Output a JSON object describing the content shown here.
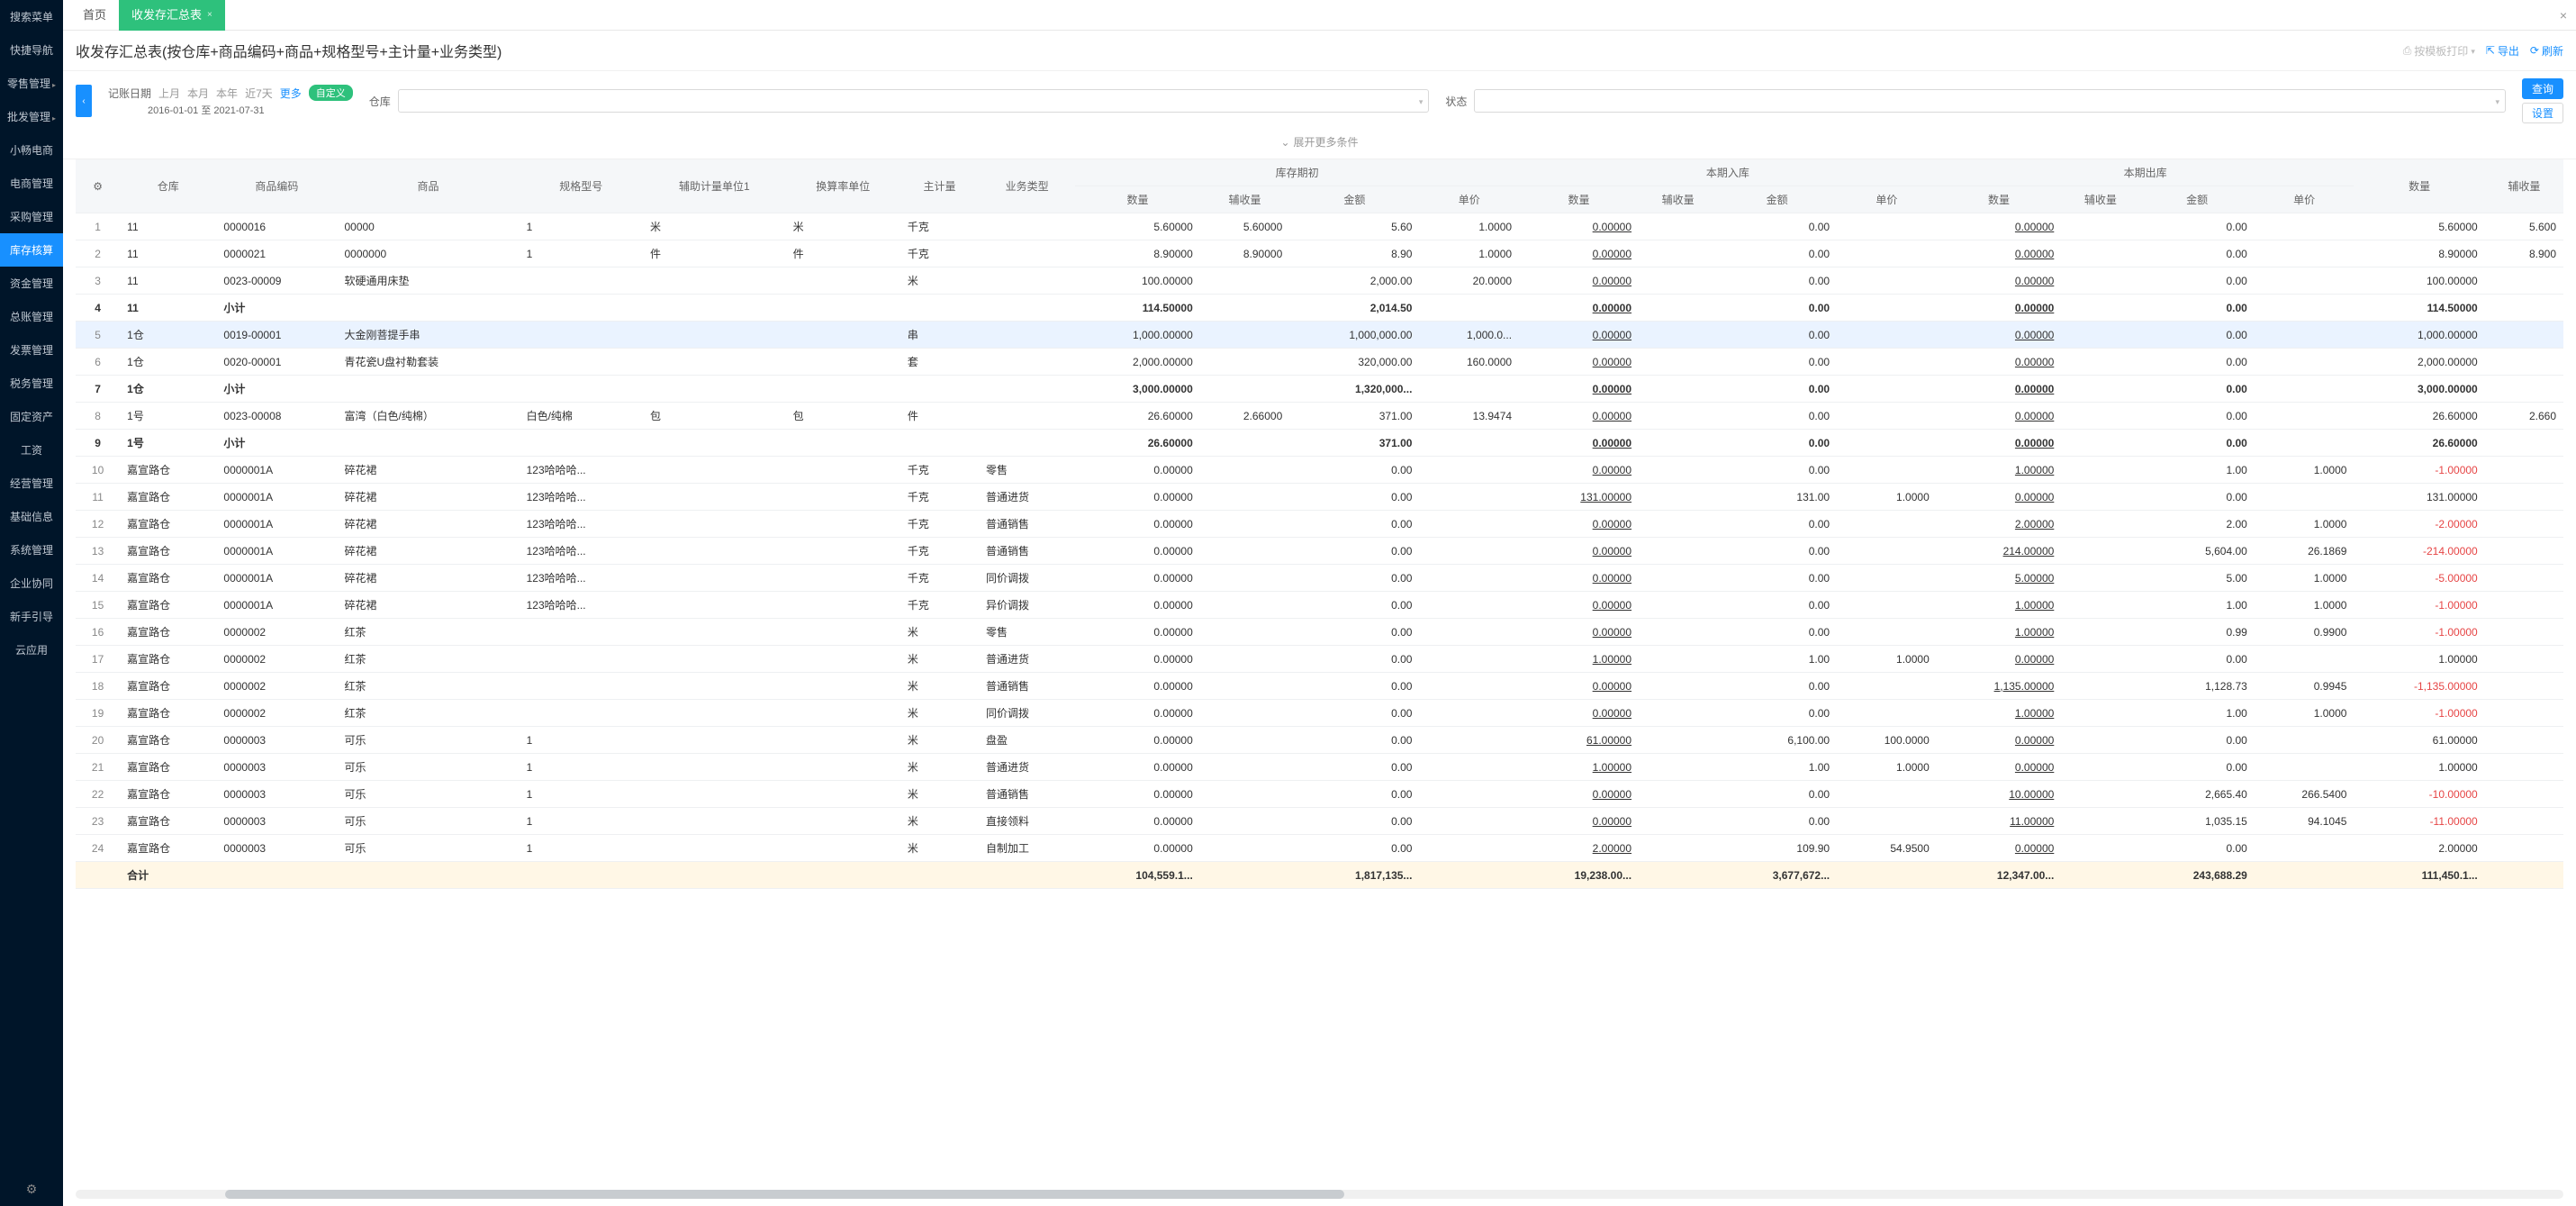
{
  "sidebar": {
    "items": [
      {
        "label": "搜索菜单",
        "arrow": false
      },
      {
        "label": "快捷导航",
        "arrow": false
      },
      {
        "label": "零售管理",
        "arrow": true
      },
      {
        "label": "批发管理",
        "arrow": true
      },
      {
        "label": "小畅电商",
        "arrow": false
      },
      {
        "label": "电商管理",
        "arrow": false
      },
      {
        "label": "采购管理",
        "arrow": false
      },
      {
        "label": "库存核算",
        "arrow": false,
        "active": true
      },
      {
        "label": "资金管理",
        "arrow": false
      },
      {
        "label": "总账管理",
        "arrow": false
      },
      {
        "label": "发票管理",
        "arrow": false
      },
      {
        "label": "税务管理",
        "arrow": false
      },
      {
        "label": "固定资产",
        "arrow": false
      },
      {
        "label": "工资",
        "arrow": false
      },
      {
        "label": "经营管理",
        "arrow": false
      },
      {
        "label": "基础信息",
        "arrow": false
      },
      {
        "label": "系统管理",
        "arrow": false
      },
      {
        "label": "企业协同",
        "arrow": false
      },
      {
        "label": "新手引导",
        "arrow": false
      },
      {
        "label": "云应用",
        "arrow": false
      }
    ]
  },
  "tabs": {
    "home": "首页",
    "active": "收发存汇总表",
    "close": "×"
  },
  "header": {
    "title": "收发存汇总表(按仓库+商品编码+商品+规格型号+主计量+业务类型)",
    "print": "按模板打印",
    "export": "导出",
    "refresh": "刷新"
  },
  "filter": {
    "dateLabel": "记账日期",
    "presets": [
      "上月",
      "本月",
      "本年",
      "近7天",
      "更多"
    ],
    "custom": "自定义",
    "range": "2016-01-01 至 2021-07-31",
    "warehouse": "仓库",
    "status": "状态",
    "query": "查询",
    "settings": "设置",
    "expand": "展开更多条件"
  },
  "columns": {
    "gear": "⚙",
    "warehouse": "仓库",
    "code": "商品编码",
    "product": "商品",
    "spec": "规格型号",
    "aux": "辅助计量单位1",
    "stockUnit": "换算率单位",
    "mainUnit": "主计量",
    "biz": "业务类型",
    "g1": "库存期初",
    "g2": "本期入库",
    "g3": "本期出库",
    "qty": "数量",
    "auxQty": "辅收量",
    "amt": "金额",
    "price": "单价"
  },
  "rows": [
    {
      "i": "1",
      "wh": "11",
      "code": "0000016",
      "prod": "00000",
      "spec": "1",
      "aux": "米",
      "su": "米",
      "mu": "千克",
      "biz": "",
      "q1": "5.60000",
      "aq1": "5.60000",
      "a1": "5.60",
      "p1": "1.0000",
      "q2": "0.00000",
      "aq2": "",
      "a2": "0.00",
      "p2": "",
      "q3": "0.00000",
      "aq3": "",
      "a3": "0.00",
      "p3": "",
      "q4": "5.60000",
      "aq4": "5.600"
    },
    {
      "i": "2",
      "wh": "11",
      "code": "0000021",
      "prod": "0000000",
      "spec": "1",
      "aux": "件",
      "su": "件",
      "mu": "千克",
      "biz": "",
      "q1": "8.90000",
      "aq1": "8.90000",
      "a1": "8.90",
      "p1": "1.0000",
      "q2": "0.00000",
      "aq2": "",
      "a2": "0.00",
      "p2": "",
      "q3": "0.00000",
      "aq3": "",
      "a3": "0.00",
      "p3": "",
      "q4": "8.90000",
      "aq4": "8.900"
    },
    {
      "i": "3",
      "wh": "11",
      "code": "0023-00009",
      "prod": "软硬通用床垫",
      "spec": "",
      "aux": "",
      "su": "",
      "mu": "米",
      "biz": "",
      "q1": "100.00000",
      "aq1": "",
      "a1": "2,000.00",
      "p1": "20.0000",
      "q2": "0.00000",
      "aq2": "",
      "a2": "0.00",
      "p2": "",
      "q3": "0.00000",
      "aq3": "",
      "a3": "0.00",
      "p3": "",
      "q4": "100.00000",
      "aq4": ""
    },
    {
      "i": "4",
      "wh": "11",
      "code": "小计",
      "sub": true,
      "q1": "114.50000",
      "a1": "2,014.50",
      "q2": "0.00000",
      "a2": "0.00",
      "q3": "0.00000",
      "a3": "0.00",
      "q4": "114.50000"
    },
    {
      "i": "5",
      "wh": "1仓",
      "code": "0019-00001",
      "prod": "大金刚菩提手串",
      "spec": "",
      "aux": "",
      "su": "",
      "mu": "串",
      "biz": "",
      "hover": true,
      "q1": "1,000.00000",
      "aq1": "",
      "a1": "1,000,000.00",
      "p1": "1,000.0...",
      "q2": "0.00000",
      "aq2": "",
      "a2": "0.00",
      "p2": "",
      "q3": "0.00000",
      "aq3": "",
      "a3": "0.00",
      "p3": "",
      "q4": "1,000.00000",
      "aq4": ""
    },
    {
      "i": "6",
      "wh": "1仓",
      "code": "0020-00001",
      "prod": "青花瓷U盘衬勒套装",
      "spec": "",
      "aux": "",
      "su": "",
      "mu": "套",
      "biz": "",
      "q1": "2,000.00000",
      "aq1": "",
      "a1": "320,000.00",
      "p1": "160.0000",
      "q2": "0.00000",
      "aq2": "",
      "a2": "0.00",
      "p2": "",
      "q3": "0.00000",
      "aq3": "",
      "a3": "0.00",
      "p3": "",
      "q4": "2,000.00000",
      "aq4": ""
    },
    {
      "i": "7",
      "wh": "1仓",
      "code": "小计",
      "sub": true,
      "q1": "3,000.00000",
      "a1": "1,320,000...",
      "q2": "0.00000",
      "a2": "0.00",
      "q3": "0.00000",
      "a3": "0.00",
      "q4": "3,000.00000"
    },
    {
      "i": "8",
      "wh": "1号",
      "code": "0023-00008",
      "prod": "富湾（白色/纯棉）",
      "spec": "白色/纯棉",
      "aux": "包",
      "su": "包",
      "mu": "件",
      "biz": "",
      "q1": "26.60000",
      "aq1": "2.66000",
      "a1": "371.00",
      "p1": "13.9474",
      "q2": "0.00000",
      "aq2": "",
      "a2": "0.00",
      "p2": "",
      "q3": "0.00000",
      "aq3": "",
      "a3": "0.00",
      "p3": "",
      "q4": "26.60000",
      "aq4": "2.660"
    },
    {
      "i": "9",
      "wh": "1号",
      "code": "小计",
      "sub": true,
      "q1": "26.60000",
      "a1": "371.00",
      "q2": "0.00000",
      "a2": "0.00",
      "q3": "0.00000",
      "a3": "0.00",
      "q4": "26.60000"
    },
    {
      "i": "10",
      "wh": "嘉宣路仓",
      "code": "0000001A",
      "prod": "碎花裙",
      "spec": "123哈哈哈...",
      "aux": "",
      "su": "",
      "mu": "千克",
      "biz": "零售",
      "q1": "0.00000",
      "aq1": "",
      "a1": "0.00",
      "p1": "",
      "q2": "0.00000",
      "aq2": "",
      "a2": "0.00",
      "p2": "",
      "q3": "1.00000",
      "aq3": "",
      "a3": "1.00",
      "p3": "1.0000",
      "q4": "-1.00000",
      "neg4": true,
      "aq4": ""
    },
    {
      "i": "11",
      "wh": "嘉宣路仓",
      "code": "0000001A",
      "prod": "碎花裙",
      "spec": "123哈哈哈...",
      "aux": "",
      "su": "",
      "mu": "千克",
      "biz": "普通进货",
      "q1": "0.00000",
      "aq1": "",
      "a1": "0.00",
      "p1": "",
      "q2": "131.00000",
      "aq2": "",
      "a2": "131.00",
      "p2": "1.0000",
      "q3": "0.00000",
      "aq3": "",
      "a3": "0.00",
      "p3": "",
      "q4": "131.00000",
      "aq4": ""
    },
    {
      "i": "12",
      "wh": "嘉宣路仓",
      "code": "0000001A",
      "prod": "碎花裙",
      "spec": "123哈哈哈...",
      "aux": "",
      "su": "",
      "mu": "千克",
      "biz": "普通销售",
      "q1": "0.00000",
      "aq1": "",
      "a1": "0.00",
      "p1": "",
      "q2": "0.00000",
      "aq2": "",
      "a2": "0.00",
      "p2": "",
      "q3": "2.00000",
      "aq3": "",
      "a3": "2.00",
      "p3": "1.0000",
      "q4": "-2.00000",
      "neg4": true,
      "aq4": ""
    },
    {
      "i": "13",
      "wh": "嘉宣路仓",
      "code": "0000001A",
      "prod": "碎花裙",
      "spec": "123哈哈哈...",
      "aux": "",
      "su": "",
      "mu": "千克",
      "biz": "普通销售",
      "q1": "0.00000",
      "aq1": "",
      "a1": "0.00",
      "p1": "",
      "q2": "0.00000",
      "aq2": "",
      "a2": "0.00",
      "p2": "",
      "q3": "214.00000",
      "aq3": "",
      "a3": "5,604.00",
      "p3": "26.1869",
      "q4": "-214.00000",
      "neg4": true,
      "aq4": ""
    },
    {
      "i": "14",
      "wh": "嘉宣路仓",
      "code": "0000001A",
      "prod": "碎花裙",
      "spec": "123哈哈哈...",
      "aux": "",
      "su": "",
      "mu": "千克",
      "biz": "同价调拨",
      "q1": "0.00000",
      "aq1": "",
      "a1": "0.00",
      "p1": "",
      "q2": "0.00000",
      "aq2": "",
      "a2": "0.00",
      "p2": "",
      "q3": "5.00000",
      "aq3": "",
      "a3": "5.00",
      "p3": "1.0000",
      "q4": "-5.00000",
      "neg4": true,
      "aq4": ""
    },
    {
      "i": "15",
      "wh": "嘉宣路仓",
      "code": "0000001A",
      "prod": "碎花裙",
      "spec": "123哈哈哈...",
      "aux": "",
      "su": "",
      "mu": "千克",
      "biz": "异价调拨",
      "q1": "0.00000",
      "aq1": "",
      "a1": "0.00",
      "p1": "",
      "q2": "0.00000",
      "aq2": "",
      "a2": "0.00",
      "p2": "",
      "q3": "1.00000",
      "aq3": "",
      "a3": "1.00",
      "p3": "1.0000",
      "q4": "-1.00000",
      "neg4": true,
      "aq4": ""
    },
    {
      "i": "16",
      "wh": "嘉宣路仓",
      "code": "0000002",
      "prod": "红茶",
      "spec": "",
      "aux": "",
      "su": "",
      "mu": "米",
      "biz": "零售",
      "q1": "0.00000",
      "aq1": "",
      "a1": "0.00",
      "p1": "",
      "q2": "0.00000",
      "aq2": "",
      "a2": "0.00",
      "p2": "",
      "q3": "1.00000",
      "aq3": "",
      "a3": "0.99",
      "p3": "0.9900",
      "q4": "-1.00000",
      "neg4": true,
      "aq4": ""
    },
    {
      "i": "17",
      "wh": "嘉宣路仓",
      "code": "0000002",
      "prod": "红茶",
      "spec": "",
      "aux": "",
      "su": "",
      "mu": "米",
      "biz": "普通进货",
      "q1": "0.00000",
      "aq1": "",
      "a1": "0.00",
      "p1": "",
      "q2": "1.00000",
      "aq2": "",
      "a2": "1.00",
      "p2": "1.0000",
      "q3": "0.00000",
      "aq3": "",
      "a3": "0.00",
      "p3": "",
      "q4": "1.00000",
      "aq4": ""
    },
    {
      "i": "18",
      "wh": "嘉宣路仓",
      "code": "0000002",
      "prod": "红茶",
      "spec": "",
      "aux": "",
      "su": "",
      "mu": "米",
      "biz": "普通销售",
      "q1": "0.00000",
      "aq1": "",
      "a1": "0.00",
      "p1": "",
      "q2": "0.00000",
      "aq2": "",
      "a2": "0.00",
      "p2": "",
      "q3": "1,135.00000",
      "aq3": "",
      "a3": "1,128.73",
      "p3": "0.9945",
      "q4": "-1,135.00000",
      "neg4": true,
      "aq4": ""
    },
    {
      "i": "19",
      "wh": "嘉宣路仓",
      "code": "0000002",
      "prod": "红茶",
      "spec": "",
      "aux": "",
      "su": "",
      "mu": "米",
      "biz": "同价调拨",
      "q1": "0.00000",
      "aq1": "",
      "a1": "0.00",
      "p1": "",
      "q2": "0.00000",
      "aq2": "",
      "a2": "0.00",
      "p2": "",
      "q3": "1.00000",
      "aq3": "",
      "a3": "1.00",
      "p3": "1.0000",
      "q4": "-1.00000",
      "neg4": true,
      "aq4": ""
    },
    {
      "i": "20",
      "wh": "嘉宣路仓",
      "code": "0000003",
      "prod": "可乐",
      "spec": "1",
      "aux": "",
      "su": "",
      "mu": "米",
      "biz": "盘盈",
      "q1": "0.00000",
      "aq1": "",
      "a1": "0.00",
      "p1": "",
      "q2": "61.00000",
      "aq2": "",
      "a2": "6,100.00",
      "p2": "100.0000",
      "q3": "0.00000",
      "aq3": "",
      "a3": "0.00",
      "p3": "",
      "q4": "61.00000",
      "aq4": ""
    },
    {
      "i": "21",
      "wh": "嘉宣路仓",
      "code": "0000003",
      "prod": "可乐",
      "spec": "1",
      "aux": "",
      "su": "",
      "mu": "米",
      "biz": "普通进货",
      "q1": "0.00000",
      "aq1": "",
      "a1": "0.00",
      "p1": "",
      "q2": "1.00000",
      "aq2": "",
      "a2": "1.00",
      "p2": "1.0000",
      "q3": "0.00000",
      "aq3": "",
      "a3": "0.00",
      "p3": "",
      "q4": "1.00000",
      "aq4": ""
    },
    {
      "i": "22",
      "wh": "嘉宣路仓",
      "code": "0000003",
      "prod": "可乐",
      "spec": "1",
      "aux": "",
      "su": "",
      "mu": "米",
      "biz": "普通销售",
      "q1": "0.00000",
      "aq1": "",
      "a1": "0.00",
      "p1": "",
      "q2": "0.00000",
      "aq2": "",
      "a2": "0.00",
      "p2": "",
      "q3": "10.00000",
      "aq3": "",
      "a3": "2,665.40",
      "p3": "266.5400",
      "q4": "-10.00000",
      "neg4": true,
      "aq4": ""
    },
    {
      "i": "23",
      "wh": "嘉宣路仓",
      "code": "0000003",
      "prod": "可乐",
      "spec": "1",
      "aux": "",
      "su": "",
      "mu": "米",
      "biz": "直接领料",
      "q1": "0.00000",
      "aq1": "",
      "a1": "0.00",
      "p1": "",
      "q2": "0.00000",
      "aq2": "",
      "a2": "0.00",
      "p2": "",
      "q3": "11.00000",
      "aq3": "",
      "a3": "1,035.15",
      "p3": "94.1045",
      "q4": "-11.00000",
      "neg4": true,
      "aq4": ""
    },
    {
      "i": "24",
      "wh": "嘉宣路仓",
      "code": "0000003",
      "prod": "可乐",
      "spec": "1",
      "aux": "",
      "su": "",
      "mu": "米",
      "biz": "自制加工",
      "q1": "0.00000",
      "aq1": "",
      "a1": "0.00",
      "p1": "",
      "q2": "2.00000",
      "aq2": "",
      "a2": "109.90",
      "p2": "54.9500",
      "q3": "0.00000",
      "aq3": "",
      "a3": "0.00",
      "p3": "",
      "q4": "2.00000",
      "aq4": ""
    }
  ],
  "total": {
    "label": "合计",
    "q1": "104,559.1...",
    "a1": "1,817,135...",
    "q2": "19,238.00...",
    "a2": "3,677,672...",
    "q3": "12,347.00...",
    "a3": "243,688.29",
    "q4": "111,450.1..."
  }
}
